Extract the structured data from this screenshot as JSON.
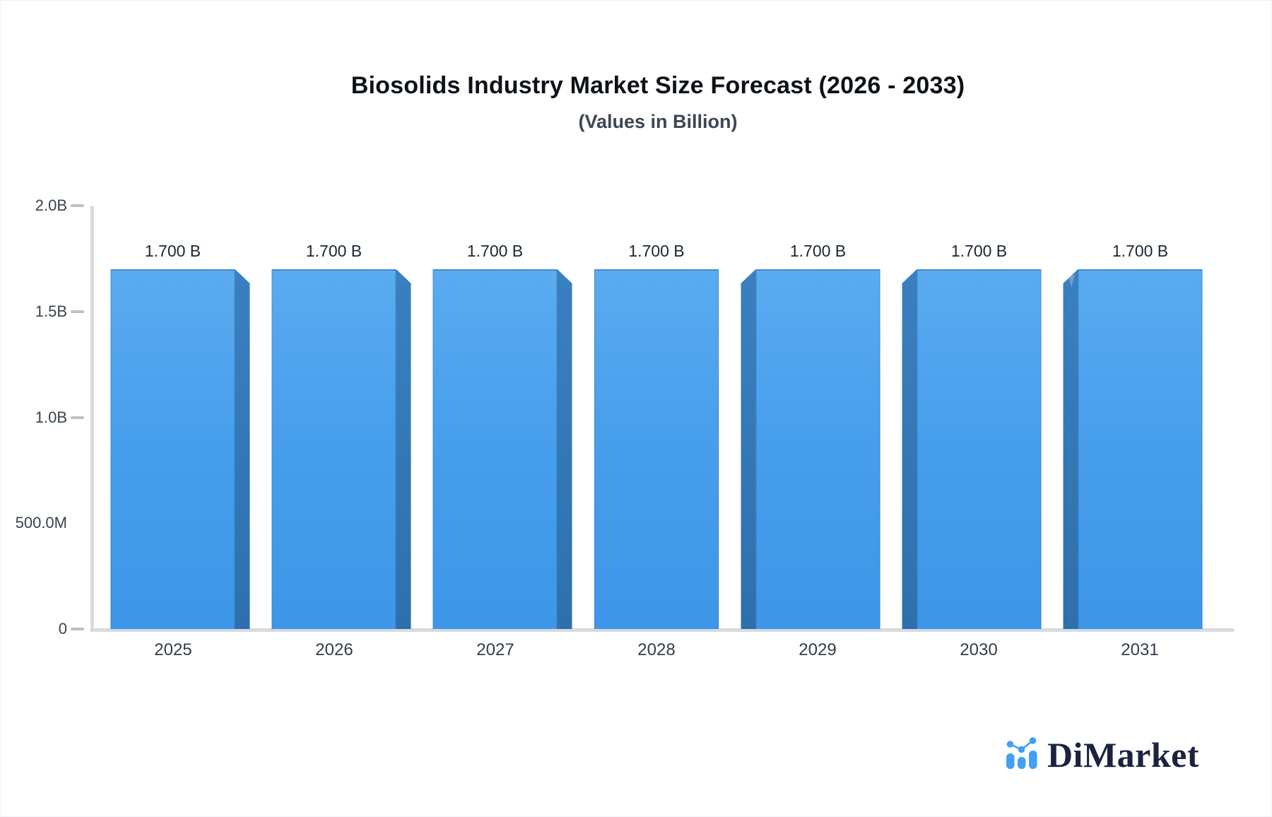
{
  "header": {
    "title": "Biosolids Industry Market Size Forecast (2026 - 2033)",
    "subtitle": "(Values in Billion)"
  },
  "chart_data": {
    "type": "bar",
    "title": "Biosolids Industry Market Size Forecast (2026 - 2033)",
    "subtitle": "(Values in Billion)",
    "categories": [
      "2025",
      "2026",
      "2027",
      "2028",
      "2029",
      "2030",
      "2031"
    ],
    "values": [
      1.7,
      1.7,
      1.7,
      1.7,
      1.7,
      1.7,
      1.7
    ],
    "value_labels": [
      "1.700 B",
      "1.700 B",
      "1.700 B",
      "1.700 B",
      "1.700 B",
      "1.700 B",
      "1.700 B"
    ],
    "unit": "Billion",
    "ylim": [
      0,
      2.0
    ],
    "y_ticks": [
      {
        "label": "2.0B",
        "value": 2.0,
        "dash": true
      },
      {
        "label": "1.5B",
        "value": 1.5,
        "dash": true
      },
      {
        "label": "1.0B",
        "value": 1.0,
        "dash": true
      },
      {
        "label": "500.0M",
        "value": 0.5,
        "dash": false
      },
      {
        "label": "0",
        "value": 0,
        "dash": true
      }
    ],
    "grid": false,
    "legend": false,
    "bar_style": "3d-perspective-center-vanishing",
    "colors": {
      "bar_face_top": "#5aabf0",
      "bar_face_bottom": "#3e96e9",
      "bar_side": "#2d70ac",
      "axis_line": "#d7dade",
      "tick_dash": "#bcc0c7"
    }
  },
  "footer": {
    "brand": "DiMarket",
    "logo_icon": "bar-chart-with-trend-dots-icon",
    "brand_color": "#1b2340",
    "icon_color": "#429ff4"
  }
}
